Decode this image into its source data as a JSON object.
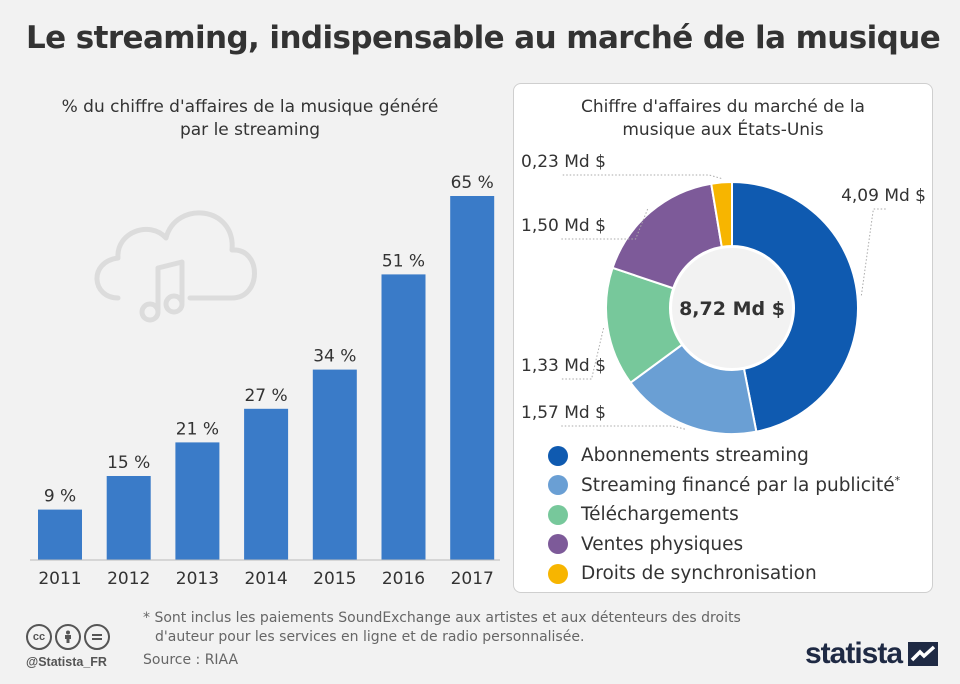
{
  "title": "Le streaming, indispensable au marché de la musique",
  "colors": {
    "bar": "#3a7bc8",
    "accent": "#1f2a44",
    "streaming_subscriptions": "#0f5ab0",
    "ad_supported": "#6a9fd4",
    "downloads": "#77c89b",
    "physical": "#7d5a99",
    "sync": "#f7b500"
  },
  "icons": [
    "cloud-music-icon",
    "cc-icon",
    "attribution-icon",
    "no-derivatives-icon",
    "statista-logo-icon"
  ],
  "chart_data": [
    {
      "type": "bar",
      "title": "% du chiffre d'affaires de la musique généré par le streaming",
      "title_lines": [
        "% du chiffre d'affaires de la musique généré",
        "par le streaming"
      ],
      "categories": [
        "2011",
        "2012",
        "2013",
        "2014",
        "2015",
        "2016",
        "2017"
      ],
      "values": [
        9,
        15,
        21,
        27,
        34,
        51,
        65
      ],
      "data_labels": [
        "9 %",
        "15 %",
        "21 %",
        "27 %",
        "34 %",
        "51 %",
        "65 %"
      ],
      "ylim": [
        0,
        70
      ],
      "grid": false
    },
    {
      "type": "pie",
      "title": "Chiffre d'affaires du marché de la musique aux États-Unis",
      "title_lines": [
        "Chiffre d'affaires du marché de la",
        "musique aux États-Unis"
      ],
      "center_label": "8,72 Md $",
      "unit": "Md $",
      "series": [
        {
          "name": "Abonnements streaming",
          "value": 4.09,
          "label": "4,09 Md $",
          "color": "#0f5ab0"
        },
        {
          "name": "Streaming financé par la publicité",
          "value": 1.57,
          "label": "1,57 Md $",
          "color": "#6a9fd4",
          "footnote_mark": "*"
        },
        {
          "name": "Téléchargements",
          "value": 1.33,
          "label": "1,33 Md $",
          "color": "#77c89b"
        },
        {
          "name": "Ventes physiques",
          "value": 1.5,
          "label": "1,50 Md $",
          "color": "#7d5a99"
        },
        {
          "name": "Droits de synchronisation",
          "value": 0.23,
          "label": "0,23 Md $",
          "color": "#f7b500"
        }
      ],
      "legend_position": "bottom"
    }
  ],
  "footnote": {
    "line1": "* Sont inclus les paiements SoundExchange aux artistes et aux détenteurs des droits",
    "line2": "d'auteur pour les services en ligne et de radio personnalisée."
  },
  "source": "Source : RIAA",
  "handle": "@Statista_FR",
  "brand": "statista"
}
